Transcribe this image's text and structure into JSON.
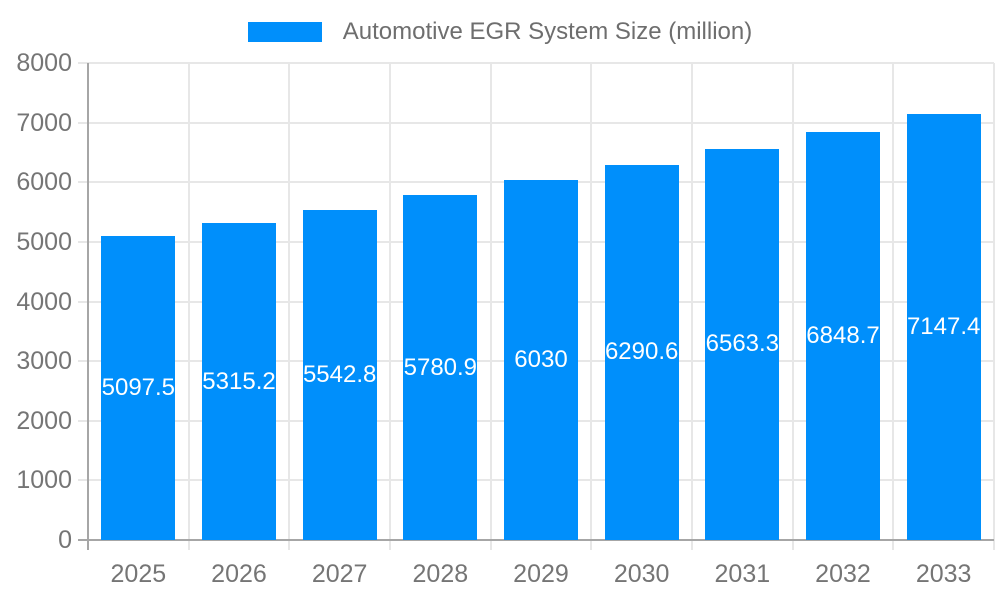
{
  "chart_data": {
    "type": "bar",
    "title": "Automotive EGR System Size (million)",
    "categories": [
      "2025",
      "2026",
      "2027",
      "2028",
      "2029",
      "2030",
      "2031",
      "2032",
      "2033"
    ],
    "values": [
      5097.5,
      5315.2,
      5542.8,
      5780.9,
      6030,
      6290.6,
      6563.3,
      6848.7,
      7147.4
    ],
    "bar_labels": [
      "5097.5",
      "5315.2",
      "5542.8",
      "5780.9",
      "6030",
      "6290.6",
      "6563.3",
      "6848.7",
      "7147.4"
    ],
    "xlabel": "",
    "ylabel": "",
    "ylim": [
      0,
      8000
    ],
    "ytick_step": 1000,
    "ytick_labels": [
      "0",
      "1000",
      "2000",
      "3000",
      "4000",
      "5000",
      "6000",
      "7000",
      "8000"
    ],
    "grid": true,
    "legend_position": "top-center",
    "colors": {
      "bar": "#008FFB",
      "grid": "#e7e7e7",
      "axis": "#a6a6a6",
      "axis_label": "#757575",
      "title": "#6e6e6e",
      "bar_label": "#ffffff",
      "background": "#ffffff"
    }
  }
}
